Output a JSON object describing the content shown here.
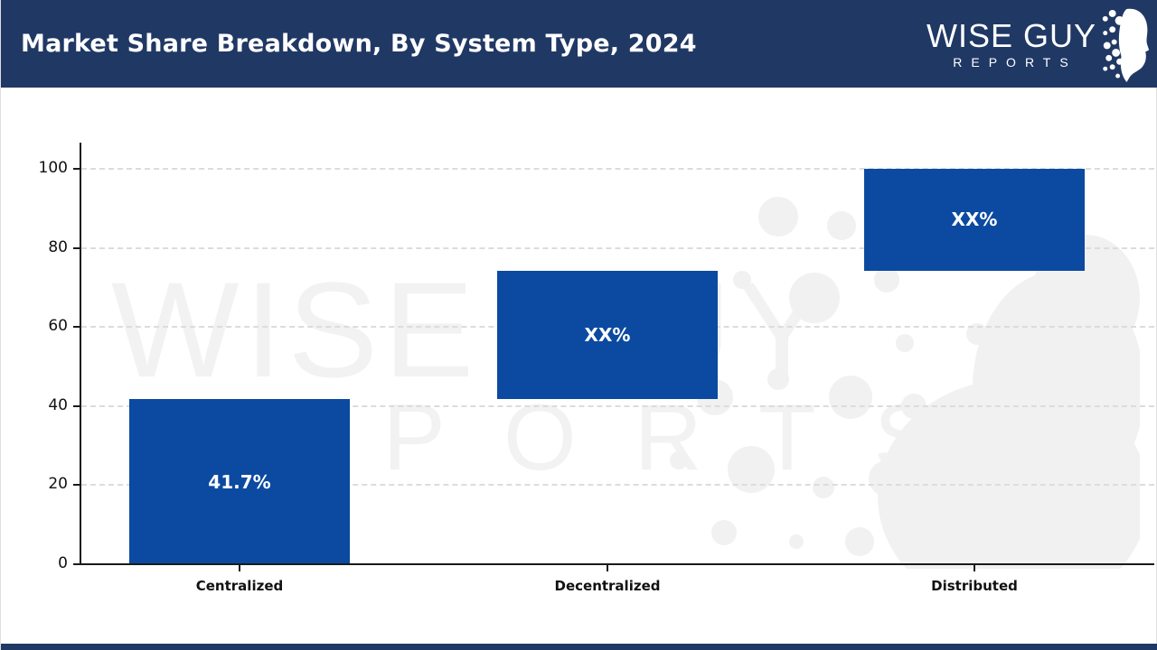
{
  "header": {
    "title": "Market Share Breakdown, By System Type, 2024",
    "logo": {
      "wordmark": "WISE GUY",
      "subtext": "REPORTS",
      "face_icon": "dotted-face-profile-icon"
    }
  },
  "watermark": {
    "line1": "WISE GUY",
    "line2": "REPORTS"
  },
  "chart_data": {
    "type": "bar",
    "subtype": "waterfall",
    "title": "Market Share Breakdown, By System Type, 2024",
    "categories": [
      "Centralized",
      "Decentralized",
      "Distributed"
    ],
    "series": [
      {
        "name": "Centralized",
        "start": 0,
        "end": 41.7,
        "label": "41.7%"
      },
      {
        "name": "Decentralized",
        "start": 41.7,
        "end": 74.3,
        "label": "XX%"
      },
      {
        "name": "Distributed",
        "start": 74.3,
        "end": 100,
        "label": "XX%"
      }
    ],
    "xlabel": "",
    "ylabel": "",
    "ylim": [
      0,
      100
    ],
    "yticks": [
      0,
      20,
      40,
      60,
      80,
      100
    ],
    "grid": "horizontal-dashed",
    "legend": "none",
    "bar_color": "#0b4aa0",
    "bar_label_color": "#ffffff"
  },
  "colors": {
    "header_bg": "#203864",
    "footer_bg": "#203864",
    "bar": "#0b4aa0",
    "grid": "#dcdcdc",
    "axis": "#1a1a1a",
    "watermark": "#f2f2f2"
  }
}
